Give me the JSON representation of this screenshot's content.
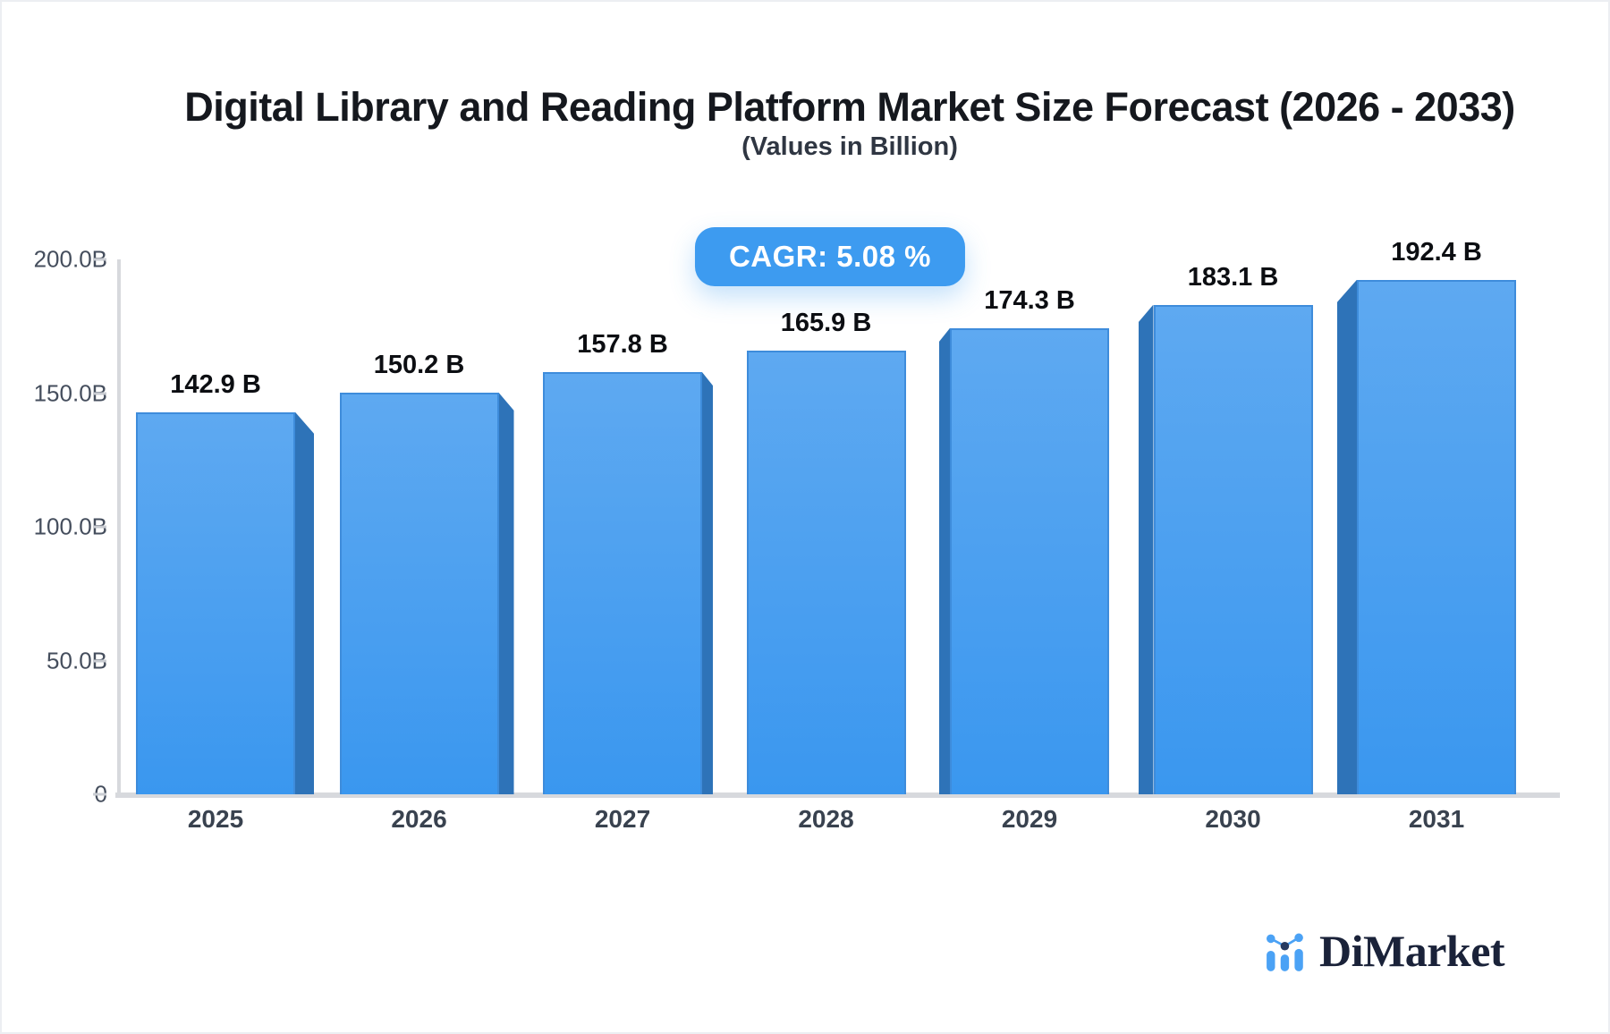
{
  "chart": {
    "title": "Digital Library and Reading Platform Market Size Forecast (2026 - 2033)",
    "subtitle": "(Values in Billion)",
    "cagr_label": "CAGR: 5.08 %"
  },
  "chart_data": {
    "type": "bar",
    "categories": [
      "2025",
      "2026",
      "2027",
      "2028",
      "2029",
      "2030",
      "2031"
    ],
    "values": [
      142.9,
      150.2,
      157.8,
      165.9,
      174.3,
      183.1,
      192.4
    ],
    "value_labels": [
      "142.9 B",
      "150.2 B",
      "157.8 B",
      "165.9 B",
      "174.3 B",
      "183.1 B",
      "192.4 B"
    ],
    "title": "Digital Library and Reading Platform Market Size Forecast (2026 - 2033)",
    "subtitle": "(Values in Billion)",
    "annotation": "CAGR: 5.08 %",
    "xlabel": "",
    "ylabel": "",
    "ylim": [
      0,
      200
    ],
    "ytick_labels": [
      "0",
      "50.0B",
      "100.0B",
      "150.0B",
      "200.0B"
    ],
    "grid": false,
    "legend": false,
    "bar_style": "3d-beveled"
  },
  "colors": {
    "badge_bg": "#3D9BF0",
    "badge_text": "#FFFFFF",
    "bar_face_top": "#5EA9F1",
    "bar_face_bottom": "#3A97EF",
    "bar_border": "#3E8CDB",
    "bar_side": "#2E73B8",
    "axis_line": "#D7D9DD",
    "logo_blue": "#4BA2F5",
    "logo_navy": "#26395F"
  },
  "logo": {
    "text": "DiMarket"
  }
}
